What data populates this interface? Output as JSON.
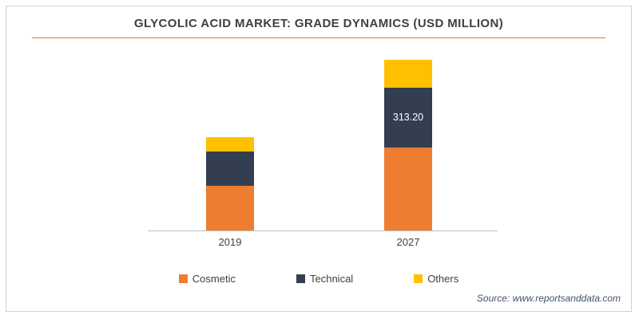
{
  "chart_data": {
    "type": "bar",
    "subtype": "stacked",
    "title": "GLYCOLIC ACID MARKET: GRADE DYNAMICS (USD MILLION)",
    "categories": [
      "2019",
      "2027"
    ],
    "series": [
      {
        "name": "Cosmetic",
        "color": "#ED7D31",
        "values": [
          234,
          434
        ]
      },
      {
        "name": "Technical",
        "color": "#333F50",
        "values": [
          180,
          313.2
        ]
      },
      {
        "name": "Others",
        "color": "#FFC000",
        "values": [
          75,
          146
        ]
      }
    ],
    "data_labels": [
      {
        "category": "2027",
        "series": "Technical",
        "text": "313.20"
      }
    ],
    "ylim": [
      0,
      950
    ],
    "grid": false,
    "y_axis_visible": false,
    "legend_position": "bottom"
  },
  "source": "Source: www.reportsanddata.com",
  "colors": {
    "divider": "#E87722",
    "axis_line": "#BFBFBF",
    "data_label_text": "#FFFFFF"
  }
}
